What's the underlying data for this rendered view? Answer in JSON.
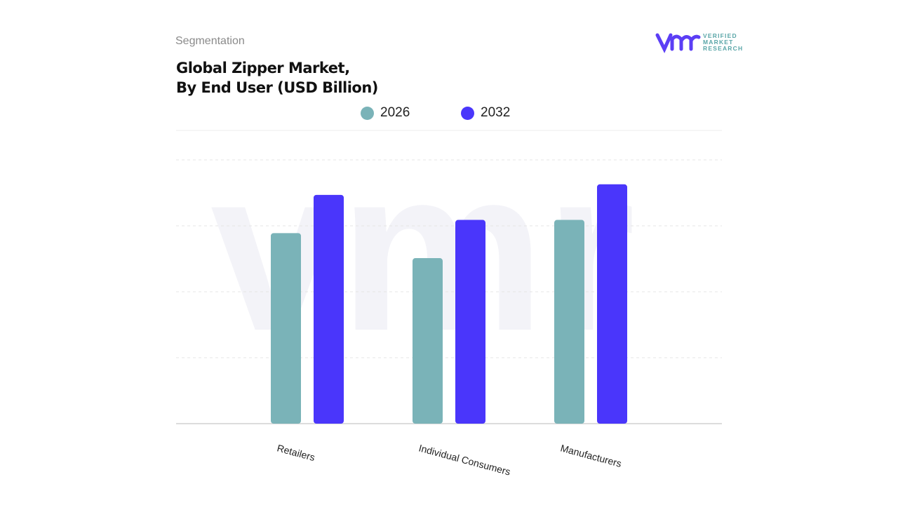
{
  "header": {
    "section": "Segmentation",
    "title_line1": "Global Zipper Market,",
    "title_line2": "By End User (USD Billion)"
  },
  "logo": {
    "text": "VERIFIED MARKET RESEARCH",
    "mark": "vmr"
  },
  "chart_data": {
    "type": "bar",
    "title": "Global Zipper Market, By End User (USD Billion)",
    "categories": [
      "Retailers",
      "Individual Consumers",
      "Manufacturers"
    ],
    "series": [
      {
        "name": "2026",
        "color": "#7ab3b8",
        "values": [
          2.89,
          2.51,
          3.09
        ]
      },
      {
        "name": "2032",
        "color": "#4a36fb",
        "values": [
          3.47,
          3.09,
          3.63
        ]
      }
    ],
    "ylim": [
      0,
      4
    ],
    "grid": true,
    "legend": "top-center",
    "y_tick_labels_shown": false
  }
}
